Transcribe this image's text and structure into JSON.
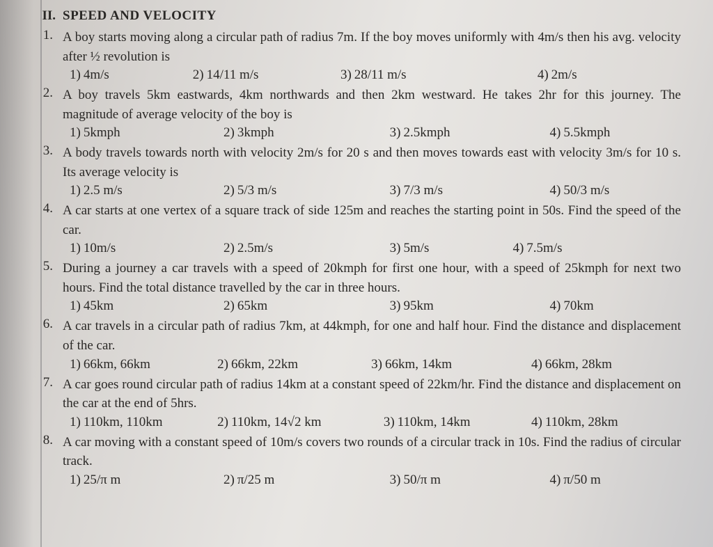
{
  "section": {
    "roman": "II.",
    "title": "SPEED AND VELOCITY"
  },
  "questions": [
    {
      "num": "1.",
      "text": "A boy starts moving along a circular path of radius 7m. If the boy moves uniformly with 4m/s then his avg. velocity after ½ revolution is",
      "opts": [
        "4m/s",
        "14/11 m/s",
        "28/11 m/s",
        "2m/s"
      ],
      "widths": [
        "20%",
        "24%",
        "32%",
        "24%"
      ]
    },
    {
      "num": "2.",
      "text": "A boy travels 5km eastwards, 4km northwards and then 2km westward. He takes 2hr for this journey. The magnitude of average velocity of the boy is",
      "opts": [
        "5kmph",
        "3kmph",
        "2.5kmph",
        "5.5kmph"
      ],
      "widths": [
        "25%",
        "27%",
        "26%",
        "22%"
      ]
    },
    {
      "num": "3.",
      "text": "A body travels towards north with velocity 2m/s for 20 s and then moves towards east with velocity 3m/s for 10 s. Its average velocity is",
      "opts": [
        "2.5 m/s",
        "5/3 m/s",
        "7/3 m/s",
        "50/3 m/s"
      ],
      "widths": [
        "25%",
        "27%",
        "26%",
        "22%"
      ]
    },
    {
      "num": "4.",
      "text": "A car starts at one vertex of a square track of side 125m and reaches the starting point in 50s. Find the speed of the car.",
      "opts": [
        "10m/s",
        "2.5m/s",
        "5m/s",
        "7.5m/s"
      ],
      "widths": [
        "25%",
        "27%",
        "20%",
        "28%"
      ]
    },
    {
      "num": "5.",
      "text": "During a journey a car travels with a speed of 20kmph for first one hour, with a speed of 25kmph for next two hours. Find the total distance travelled by the car in three hours.",
      "opts": [
        "45km",
        "65km",
        "95km",
        "70km"
      ],
      "widths": [
        "25%",
        "27%",
        "26%",
        "22%"
      ]
    },
    {
      "num": "6.",
      "text": "A car travels in a circular path of radius 7km, at 44kmph, for one and half hour. Find the distance and displacement of the car.",
      "opts": [
        "66km, 66km",
        "66km, 22km",
        "66km, 14km",
        "66km, 28km"
      ],
      "widths": [
        "24%",
        "25%",
        "26%",
        "25%"
      ]
    },
    {
      "num": "7.",
      "text": "A car goes round circular path of radius 14km at a constant speed of 22km/hr. Find the distance and displacement on the car at the end of 5hrs.",
      "opts": [
        "110km, 110km",
        "110km, 14√2 km",
        "110km, 14km",
        "110km, 28km"
      ],
      "widths": [
        "24%",
        "27%",
        "24%",
        "25%"
      ]
    },
    {
      "num": "8.",
      "text": "A car moving with a constant speed of 10m/s covers two rounds of a circular track in 10s. Find the radius of circular track.",
      "opts": [
        "25/π m",
        "π/25 m",
        "50/π m",
        "π/50 m"
      ],
      "widths": [
        "25%",
        "27%",
        "26%",
        "22%"
      ]
    }
  ]
}
